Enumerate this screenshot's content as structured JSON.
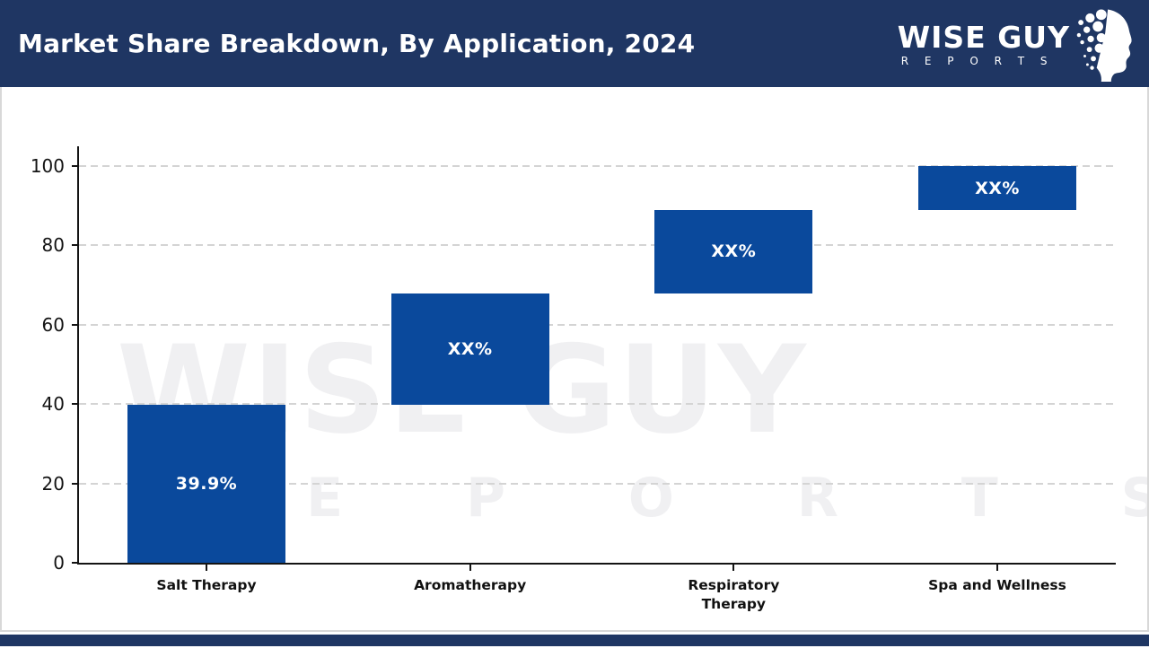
{
  "header": {
    "title": "Market Share Breakdown, By Application, 2024",
    "logo": {
      "brand": "WISE GUY",
      "brand_sub": "R E P O R T S"
    }
  },
  "watermark": {
    "brand": "WISE GUY",
    "brand_sub": "R E P O R T S"
  },
  "chart_data": {
    "type": "bar",
    "subtype": "waterfall",
    "title": "Market Share Breakdown, By Application, 2024",
    "xlabel": "",
    "ylabel": "",
    "ylim": [
      0,
      100
    ],
    "yticks": [
      0,
      20,
      40,
      60,
      80,
      100
    ],
    "grid": {
      "horizontal": true,
      "style": "dashed"
    },
    "legend": "none",
    "bars": [
      {
        "category": "Salt Therapy",
        "start": 0,
        "end": 39.9,
        "label": "39.9%"
      },
      {
        "category": "Aromatherapy",
        "start": 39.9,
        "end": 67.9,
        "label": "XX%"
      },
      {
        "category": "Respiratory\nTherapy",
        "start": 67.9,
        "end": 88.9,
        "label": "XX%"
      },
      {
        "category": "Spa and Wellness",
        "start": 88.9,
        "end": 99.9,
        "label": "XX%"
      }
    ]
  },
  "colors": {
    "header_bg": "#1f3663",
    "footer_bg": "#1f3663",
    "bar": "#0a499c",
    "bar_label": "#ffffff",
    "grid": "#d4d4d4",
    "axis": "#141414",
    "watermark": "#f0f0f2",
    "frame_border": "#d8d8d8",
    "title_text": "#ffffff"
  }
}
